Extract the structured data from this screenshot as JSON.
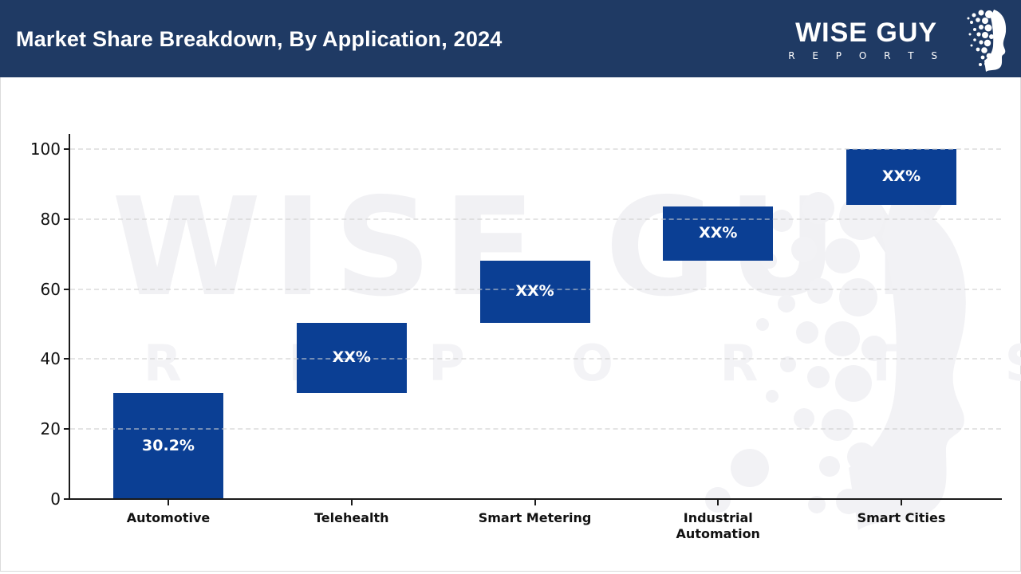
{
  "header": {
    "title": "Market Share Breakdown, By Application, 2024",
    "logo_line1": "WISE GUY",
    "logo_line2": "R E P O R T S"
  },
  "watermark": {
    "line1": "WISE GUY",
    "line2": "R E P O R T S"
  },
  "colors": {
    "header_bg": "#1f3a64",
    "bar_fill": "#0b3f94",
    "bar_label_text": "#ffffff",
    "axis": "#1a1a1a",
    "gridline": "#d9d9d9",
    "watermark": "#f1f1f4",
    "edge_hairline": "#d9d9d9"
  },
  "chart_data": {
    "type": "bar",
    "subtype": "waterfall",
    "title": "Market Share Breakdown, By Application, 2024",
    "categories": [
      "Automotive",
      "Telehealth",
      "Smart Metering",
      "Industrial Automation",
      "Smart Cities"
    ],
    "segments": [
      {
        "category": "Automotive",
        "start": 0,
        "end": 30.2,
        "value_label": "30.2%"
      },
      {
        "category": "Telehealth",
        "start": 30.2,
        "end": 50.3,
        "value_label": "XX%"
      },
      {
        "category": "Smart Metering",
        "start": 50.4,
        "end": 68.1,
        "value_label": "XX%"
      },
      {
        "category": "Industrial Automation",
        "start": 68.2,
        "end": 83.6,
        "value_label": "XX%"
      },
      {
        "category": "Smart Cities",
        "start": 84.0,
        "end": 100.0,
        "value_label": "XX%"
      }
    ],
    "y_ticks": [
      0,
      20,
      40,
      60,
      80,
      100
    ],
    "ylim": [
      0,
      100
    ],
    "xlabel": "",
    "ylabel": "",
    "grid": "horizontal-dashed",
    "legend": "none"
  }
}
